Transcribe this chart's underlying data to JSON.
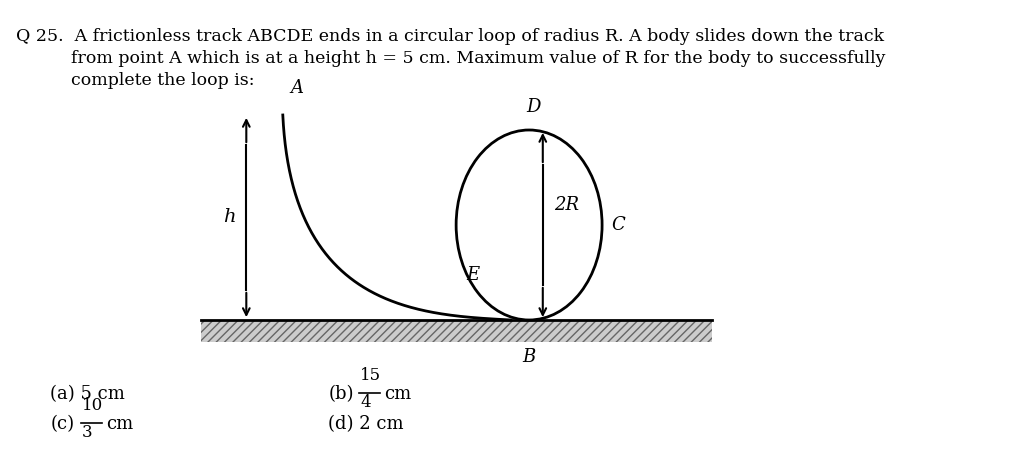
{
  "bg_color": "#ffffff",
  "ground_hatch": "////",
  "track_color": "#000000",
  "loop_color": "#000000",
  "label_A": "A",
  "label_B": "B",
  "label_C": "C",
  "label_D": "D",
  "label_E": "E",
  "label_h": "h",
  "label_2R": "2R",
  "option_a": "(a) 5 cm",
  "option_b_pre": "(b)",
  "option_b_num": "15",
  "option_b_den": "4",
  "option_b_unit": "cm",
  "option_c_pre": "(c)",
  "option_c_num": "10",
  "option_c_den": "3",
  "option_c_unit": "cm",
  "option_d": "(d) 2 cm",
  "question_line1": "Q 25.  A frictionless track ABCDE ends in a circular loop of radius R. A body slides down the track",
  "question_line2": "          from point A which is at a height h = 5 cm. Maximum value of R for the body to successfully",
  "question_line3": "          complete the loop is:",
  "font_size_q": 12.5,
  "font_size_label": 13,
  "font_size_options": 13
}
